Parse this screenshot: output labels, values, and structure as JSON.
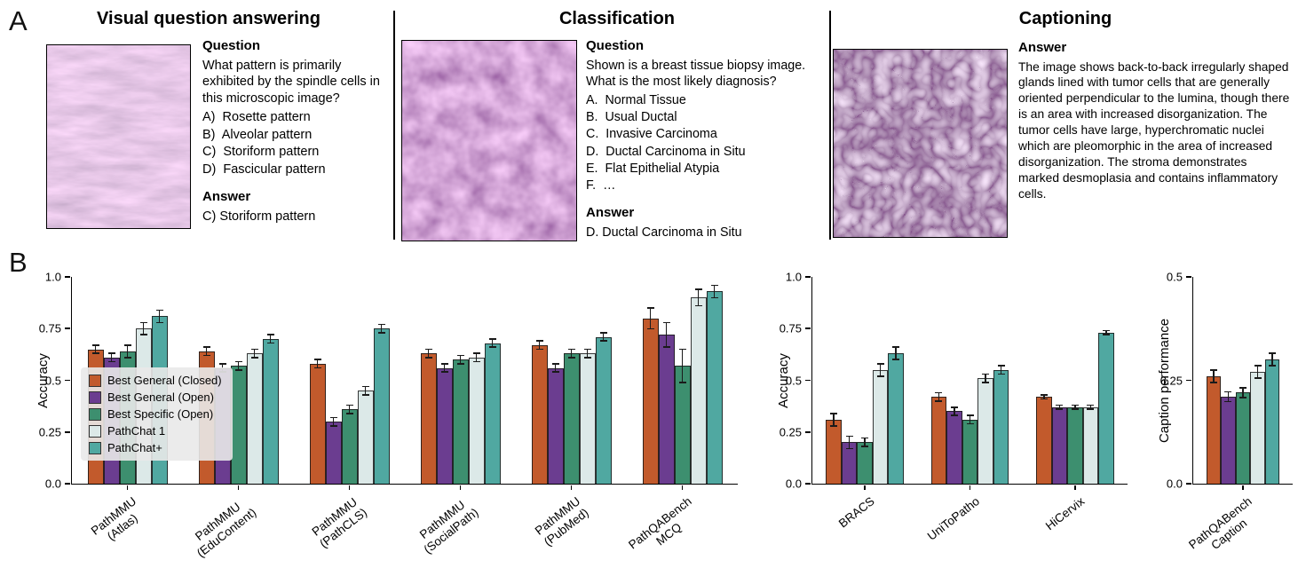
{
  "panel_a": {
    "label": "A",
    "sections": [
      {
        "title": "Visual question answering",
        "image": "histology-spindle-cells",
        "blocks": [
          {
            "heading": "Question",
            "lines": [
              "What pattern is primarily exhibited by the spindle cells in this microscopic image?"
            ],
            "options": [
              "A)  Rosette pattern",
              "B)  Alveolar pattern",
              "C)  Storiform pattern",
              "D)  Fascicular pattern"
            ]
          },
          {
            "heading": "Answer",
            "lines": [
              "C) Storiform pattern"
            ],
            "options": []
          }
        ]
      },
      {
        "title": "Classification",
        "image": "histology-breast-biopsy",
        "blocks": [
          {
            "heading": "Question",
            "lines": [
              "Shown is a breast tissue biopsy image. What is the most likely diagnosis?"
            ],
            "options": [
              "A.  Normal Tissue",
              "B.  Usual Ductal",
              "C.  Invasive Carcinoma",
              "D.  Ductal Carcinoma in Situ",
              "E.  Flat Epithelial Atypia",
              "F.  …"
            ]
          },
          {
            "heading": "Answer",
            "lines": [
              "D. Ductal Carcinoma in Situ"
            ],
            "options": []
          }
        ]
      },
      {
        "title": "Captioning",
        "image": "histology-glands",
        "blocks": [
          {
            "heading": "Answer",
            "lines": [
              "The image shows back-to-back irregularly shaped glands lined with tumor cells that are generally oriented perpendicular to the lumina, though there is an area with increased disorganization. The tumor cells have large, hyperchromatic nuclei which are pleomorphic in the area of increased disorganization. The stroma demonstrates marked desmoplasia and contains inflammatory cells."
            ],
            "options": []
          }
        ]
      }
    ]
  },
  "panel_b": {
    "label": "B"
  },
  "chart_data": [
    {
      "type": "bar",
      "ylabel": "Accuracy",
      "ylim": [
        0,
        1.0
      ],
      "yticks": [
        "0.0",
        "0.25",
        "0.5",
        "0.75",
        "1.0"
      ],
      "grid": false,
      "legend_position": "lower-left-inside",
      "categories": [
        "PathMMU\n(Atlas)",
        "PathMMU\n(EduContent)",
        "PathMMU\n(PathCLS)",
        "PathMMU\n(SocialPath)",
        "PathMMU\n(PubMed)",
        "PathQABench\nMCQ"
      ],
      "series": [
        {
          "name": "Best General (Closed)",
          "color": "#c25a2c",
          "values": [
            0.65,
            0.64,
            0.58,
            0.63,
            0.67,
            0.8
          ],
          "errors": [
            0.02,
            0.02,
            0.02,
            0.02,
            0.02,
            0.05
          ]
        },
        {
          "name": "Best General (Open)",
          "color": "#6b3d90",
          "values": [
            0.61,
            0.56,
            0.3,
            0.56,
            0.56,
            0.72
          ],
          "errors": [
            0.02,
            0.02,
            0.02,
            0.02,
            0.02,
            0.06
          ]
        },
        {
          "name": "Best Specific (Open)",
          "color": "#3d8f6f",
          "values": [
            0.64,
            0.57,
            0.36,
            0.6,
            0.63,
            0.57
          ],
          "errors": [
            0.03,
            0.02,
            0.02,
            0.02,
            0.02,
            0.08
          ]
        },
        {
          "name": "PathChat 1",
          "color": "#dce9e8",
          "values": [
            0.75,
            0.63,
            0.45,
            0.61,
            0.63,
            0.9
          ],
          "errors": [
            0.03,
            0.02,
            0.02,
            0.02,
            0.02,
            0.04
          ]
        },
        {
          "name": "PathChat+",
          "color": "#50a8a1",
          "values": [
            0.81,
            0.7,
            0.75,
            0.68,
            0.71,
            0.93
          ],
          "errors": [
            0.03,
            0.02,
            0.02,
            0.02,
            0.02,
            0.03
          ]
        }
      ]
    },
    {
      "type": "bar",
      "ylabel": "Accuracy",
      "ylim": [
        0,
        1.0
      ],
      "yticks": [
        "0.0",
        "0.25",
        "0.5",
        "0.75",
        "1.0"
      ],
      "grid": false,
      "categories": [
        "BRACS",
        "UniToPatho",
        "HiCervix"
      ],
      "series": [
        {
          "name": "Best General (Closed)",
          "color": "#c25a2c",
          "values": [
            0.31,
            0.42,
            0.42
          ],
          "errors": [
            0.03,
            0.02,
            0.01
          ]
        },
        {
          "name": "Best General (Open)",
          "color": "#6b3d90",
          "values": [
            0.2,
            0.35,
            0.37
          ],
          "errors": [
            0.03,
            0.02,
            0.01
          ]
        },
        {
          "name": "Best Specific (Open)",
          "color": "#3d8f6f",
          "values": [
            0.2,
            0.31,
            0.37
          ],
          "errors": [
            0.02,
            0.02,
            0.01
          ]
        },
        {
          "name": "PathChat 1",
          "color": "#dce9e8",
          "values": [
            0.55,
            0.51,
            0.37
          ],
          "errors": [
            0.03,
            0.02,
            0.01
          ]
        },
        {
          "name": "PathChat+",
          "color": "#50a8a1",
          "values": [
            0.63,
            0.55,
            0.73
          ],
          "errors": [
            0.03,
            0.02,
            0.01
          ]
        }
      ]
    },
    {
      "type": "bar",
      "ylabel": "Caption performance",
      "ylim": [
        0,
        0.5
      ],
      "yticks": [
        "0.0",
        "0.25",
        "0.5"
      ],
      "grid": false,
      "categories": [
        "PathQABench\nCaption"
      ],
      "series": [
        {
          "name": "Best General (Closed)",
          "color": "#c25a2c",
          "values": [
            0.26
          ],
          "errors": [
            0.015
          ]
        },
        {
          "name": "Best General (Open)",
          "color": "#6b3d90",
          "values": [
            0.21
          ],
          "errors": [
            0.012
          ]
        },
        {
          "name": "Best Specific (Open)",
          "color": "#3d8f6f",
          "values": [
            0.22
          ],
          "errors": [
            0.012
          ]
        },
        {
          "name": "PathChat 1",
          "color": "#dce9e8",
          "values": [
            0.27
          ],
          "errors": [
            0.015
          ]
        },
        {
          "name": "PathChat+",
          "color": "#50a8a1",
          "values": [
            0.3
          ],
          "errors": [
            0.015
          ]
        }
      ]
    }
  ]
}
